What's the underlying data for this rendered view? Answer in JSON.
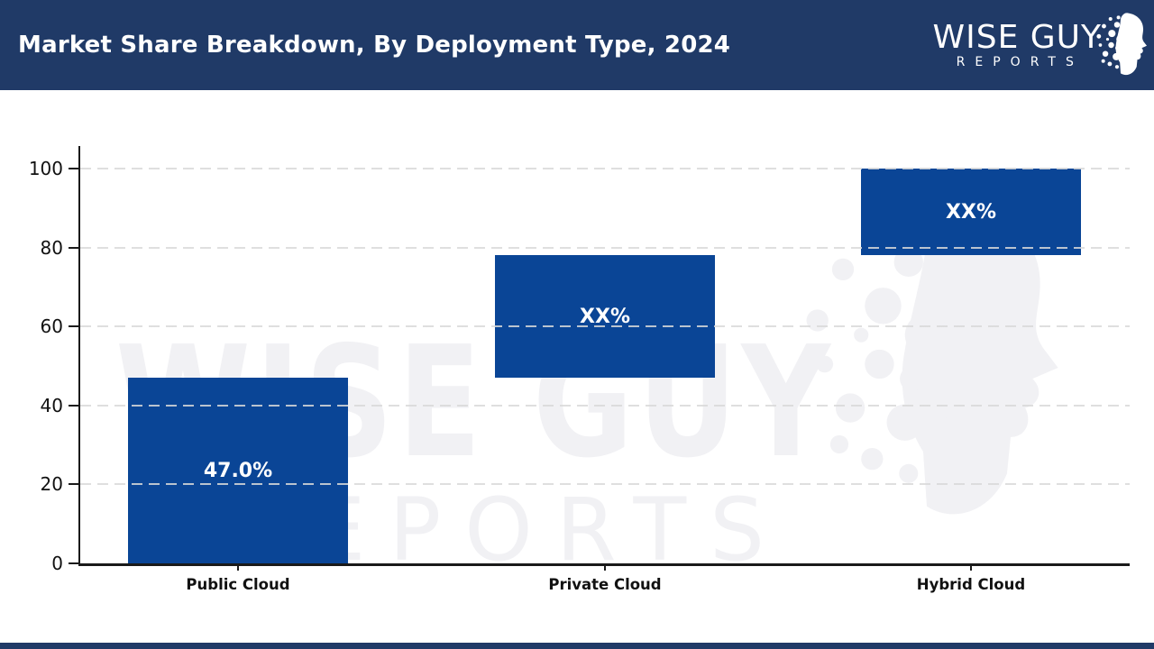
{
  "header": {
    "title": "Market Share Breakdown, By Deployment Type, 2024",
    "logo": {
      "name": "WISE GUY",
      "sub": "REPORTS"
    }
  },
  "watermark": {
    "line1": "WISE GUY",
    "line2": "REPORTS"
  },
  "chart_data": {
    "type": "bar",
    "variant": "stacked-waterfall",
    "title": "Market Share Breakdown, By Deployment Type, 2024",
    "categories": [
      "Public Cloud",
      "Private Cloud",
      "Hybrid Cloud"
    ],
    "segments": [
      {
        "category": "Public Cloud",
        "start": 0,
        "end": 47,
        "label": "47.0%"
      },
      {
        "category": "Private Cloud",
        "start": 47,
        "end": 78,
        "label": "XX%"
      },
      {
        "category": "Hybrid Cloud",
        "start": 78,
        "end": 100,
        "label": "XX%"
      }
    ],
    "yticks": [
      0,
      20,
      40,
      60,
      80,
      100
    ],
    "ylim": [
      0,
      105
    ],
    "xlabel": "",
    "ylabel": "",
    "grid": "horizontal-dashed",
    "legend": "none",
    "bar_color": "#0a4596",
    "bar_label_color": "#ffffff"
  },
  "colors": {
    "header_bg": "#203a67",
    "footer_bg": "#203a67",
    "axis": "#1a1a1a",
    "grid": "#d9d9d9",
    "watermark": "#f1f1f4"
  }
}
